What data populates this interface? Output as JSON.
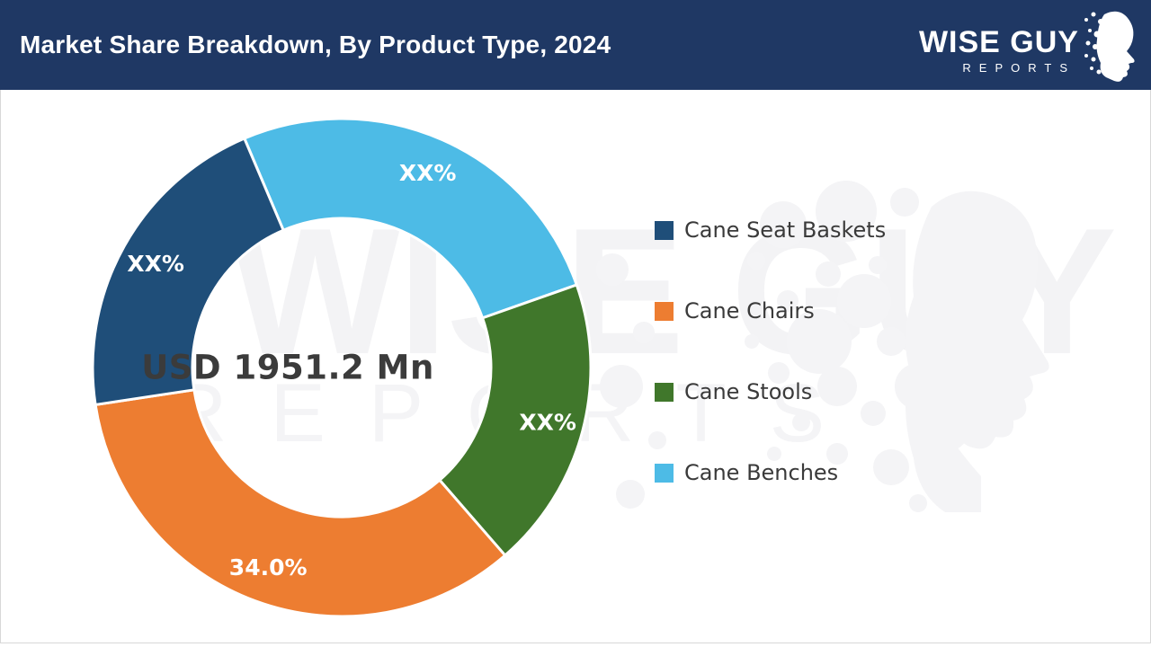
{
  "header": {
    "title": "Market Share Breakdown, By Product Type, 2024",
    "logo": {
      "line1": "WISE GUY",
      "line2": "REPORTS"
    }
  },
  "chart_data": {
    "type": "pie",
    "subtype": "donut",
    "title": "Market Share Breakdown, By Product Type, 2024",
    "center_label": "USD 1951.2 Mn",
    "start_angle_deg": -23,
    "legend_position": "right",
    "segments": [
      {
        "name": "Cane Seat Baskets",
        "color": "#1F4E79",
        "value_pct": 21,
        "display_label": "XX%"
      },
      {
        "name": "Cane Chairs",
        "color": "#ED7D31",
        "value_pct": 34,
        "display_label": "34.0%"
      },
      {
        "name": "Cane Stools",
        "color": "#40772B",
        "value_pct": 19,
        "display_label": "XX%"
      },
      {
        "name": "Cane Benches",
        "color": "#4DBBE6",
        "value_pct": 26,
        "display_label": "XX%"
      }
    ],
    "draw_order": [
      3,
      2,
      1,
      0
    ]
  },
  "watermark": {
    "line1": "WISE GUY",
    "line2": "REPORTS"
  }
}
